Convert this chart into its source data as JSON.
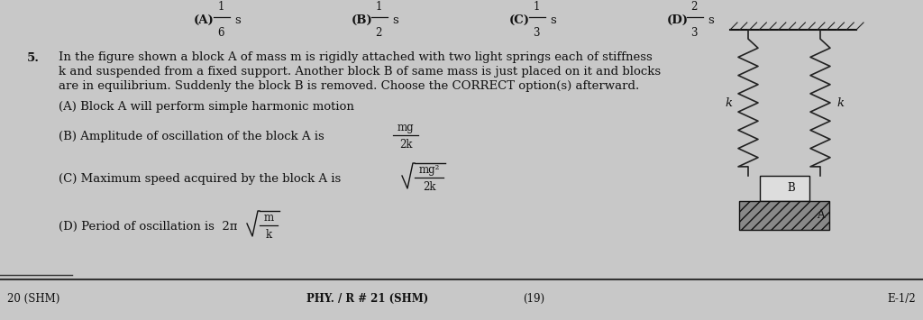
{
  "bg_color": "#c8c8c8",
  "top_options": [
    {
      "label": "(A)",
      "num": "1",
      "den": "6",
      "unit": "s"
    },
    {
      "label": "(B)",
      "num": "1",
      "den": "2",
      "unit": "s"
    },
    {
      "label": "(C)",
      "num": "1",
      "den": "3",
      "unit": "s"
    },
    {
      "label": "(D)",
      "num": "2",
      "den": "3",
      "unit": "s"
    }
  ],
  "question_number": "5.",
  "question_lines": [
    "In the figure shown a block A of mass m is rigidly attached with two light springs each of stiffness",
    "k and suspended from a fixed support. Another block B of same mass is just placed on it and blocks",
    "are in equilibrium. Suddenly the block B is removed. Choose the CORRECT option(s) afterward."
  ],
  "opt_A_text": "(A) Block A will perform simple harmonic motion",
  "opt_B_text": "(B) Amplitude of oscillation of the block A is ",
  "opt_B_num": "mg",
  "opt_B_den": "2k",
  "opt_C_text": "(C) Maximum speed acquired by the block A is ",
  "opt_C_num": "mg²",
  "opt_C_den": "2k",
  "opt_D_text": "(D) Period of oscillation is  2π",
  "opt_D_num": "m",
  "opt_D_den": "k",
  "bottom_left": "20 (SHM)",
  "bottom_center": "PHY. / R # 21 (SHM)",
  "bottom_center2": "(19)",
  "bottom_right": "E-1/2",
  "text_color": "#111111",
  "line_color": "#333333",
  "spring_color": "#222222",
  "block_a_color": "#888888",
  "block_b_color": "#dddddd"
}
